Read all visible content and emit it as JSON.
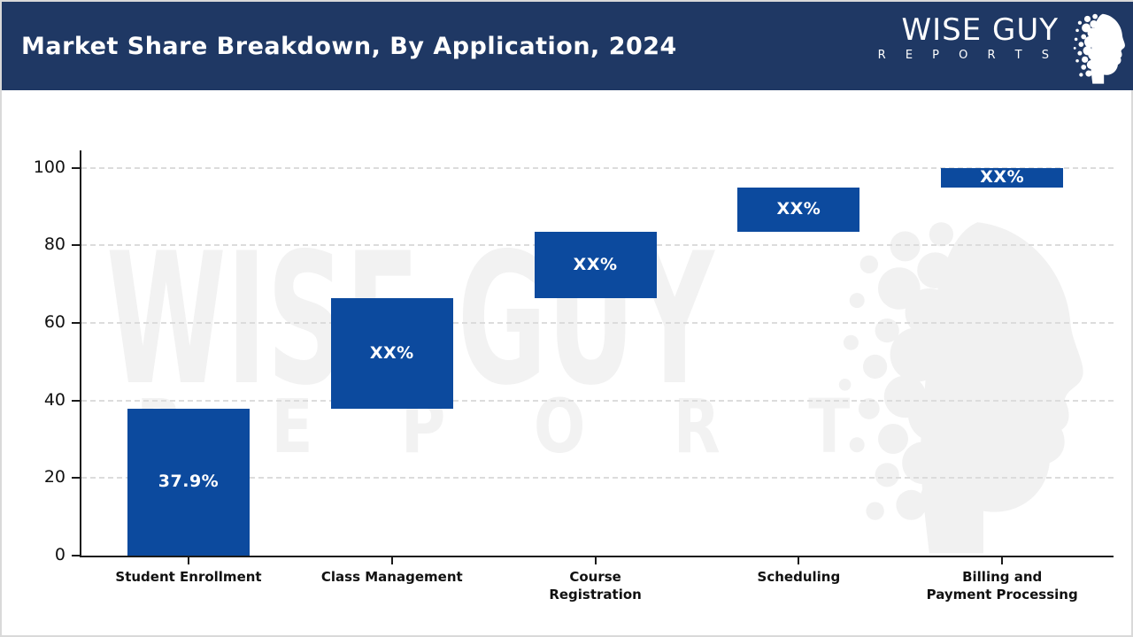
{
  "header": {
    "title": "Market Share Breakdown, By Application, 2024",
    "logo": {
      "line1": "WISE GUY",
      "line2": "R E P O R T S"
    }
  },
  "watermark": {
    "line1": "WISE GUY",
    "line2": "R E P O R T S"
  },
  "colors": {
    "header_bg": "#1f3864",
    "bar": "#0c4a9e",
    "grid": "#dcdcdc",
    "axis": "#1a1a1a",
    "bar_label": "#ffffff",
    "watermark": "#f2f2f2"
  },
  "chart_data": {
    "type": "bar",
    "variant": "waterfall",
    "title": "Market Share Breakdown, By Application, 2024",
    "categories": [
      "Student Enrollment",
      "Class Management",
      "Course Registration",
      "Scheduling",
      "Billing and Payment Processing"
    ],
    "category_lines": [
      [
        "Student Enrollment"
      ],
      [
        "Class Management"
      ],
      [
        "Course",
        "Registration"
      ],
      [
        "Scheduling"
      ],
      [
        "Billing and",
        "Payment Processing"
      ]
    ],
    "segments": [
      {
        "category": "Student Enrollment",
        "start": 0,
        "end": 37.9,
        "value": 37.9,
        "label": "37.9%"
      },
      {
        "category": "Class Management",
        "start": 37.9,
        "end": 66.4,
        "value": 28.5,
        "label": "XX%"
      },
      {
        "category": "Course Registration",
        "start": 66.4,
        "end": 83.5,
        "value": 17.1,
        "label": "XX%"
      },
      {
        "category": "Scheduling",
        "start": 83.5,
        "end": 94.9,
        "value": 11.4,
        "label": "XX%"
      },
      {
        "category": "Billing and Payment Processing",
        "start": 94.9,
        "end": 100,
        "value": 5.1,
        "label": "XX%"
      }
    ],
    "yticks": [
      0,
      20,
      40,
      60,
      80,
      100
    ],
    "ylim": [
      0,
      105
    ],
    "xlabel": "",
    "ylabel": "",
    "grid": "horizontal-dashed",
    "legend": "none"
  }
}
